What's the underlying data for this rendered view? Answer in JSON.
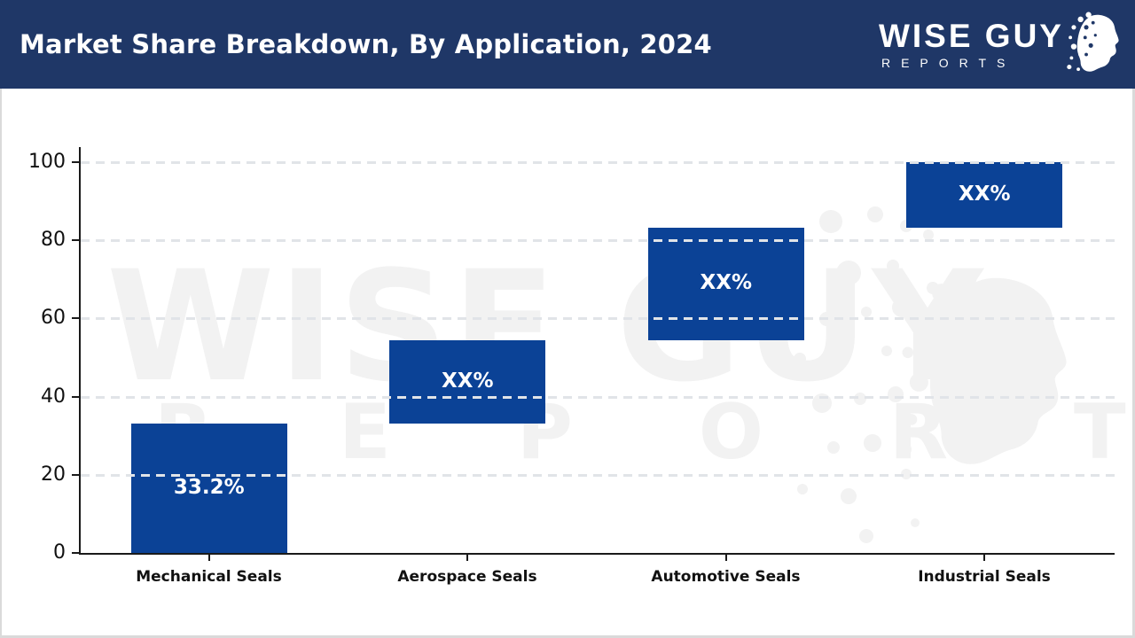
{
  "header": {
    "title": "Market Share Breakdown, By Application, 2024",
    "logo_line1": "WISE GUY",
    "logo_line2": "REPORTS"
  },
  "watermark": {
    "line1": "WISE GUY",
    "line2": "R E P O R T S"
  },
  "chart_data": {
    "type": "bar",
    "variant": "waterfall",
    "title": "Market Share Breakdown, By Application, 2024",
    "categories": [
      "Mechanical Seals",
      "Aerospace Seals",
      "Automotive Seals",
      "Industrial Seals"
    ],
    "segments": [
      {
        "category": "Mechanical Seals",
        "start": 0,
        "end": 33.2,
        "value": 33.2,
        "label": "33.2%"
      },
      {
        "category": "Aerospace Seals",
        "start": 33.2,
        "end": 54.5,
        "value": 21.3,
        "label": "XX%"
      },
      {
        "category": "Automotive Seals",
        "start": 54.5,
        "end": 83.2,
        "value": 28.7,
        "label": "XX%"
      },
      {
        "category": "Industrial Seals",
        "start": 83.2,
        "end": 100,
        "value": 16.8,
        "label": "XX%"
      }
    ],
    "xlabel": "",
    "ylabel": "",
    "ylim": [
      0,
      100
    ],
    "yticks": [
      0,
      20,
      40,
      60,
      80,
      100
    ],
    "grid": "horizontal-dashed",
    "legend": "none",
    "colors": {
      "bar": "#0b4296",
      "bar_label": "#ffffff",
      "header_bg": "#1f3767",
      "axis": "#1a1a1a",
      "gridline": "#e1e4e8",
      "watermark": "#f2f2f2"
    }
  }
}
